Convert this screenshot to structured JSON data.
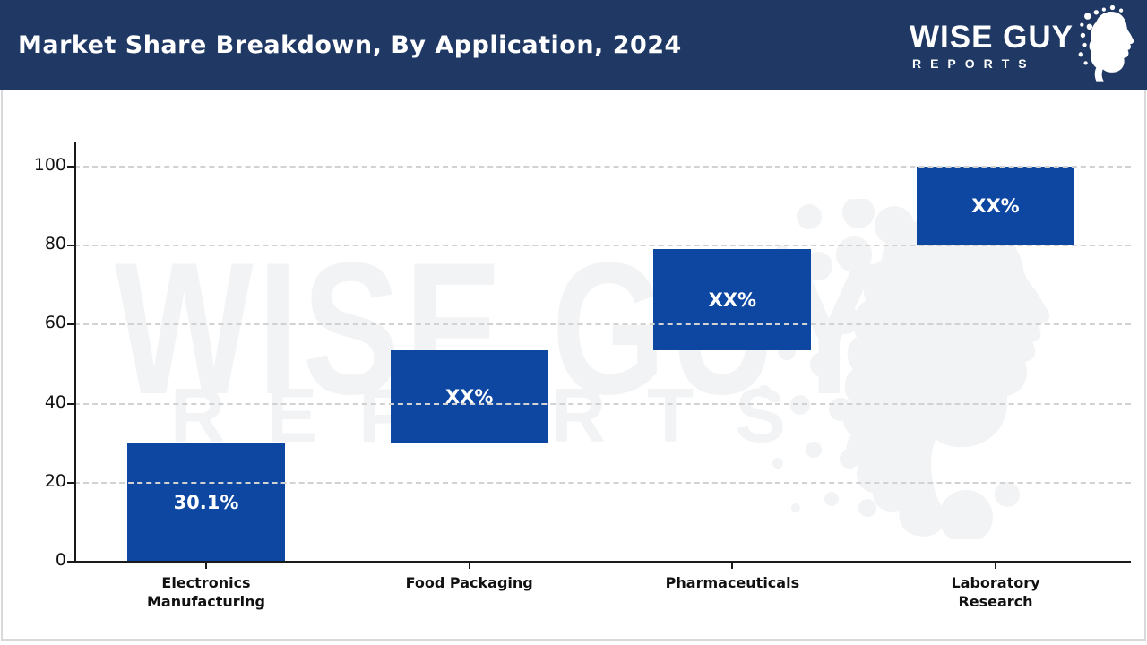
{
  "header": {
    "title": "Market Share Breakdown, By Application, 2024"
  },
  "logo": {
    "line1": "WISE GUY",
    "line2": "REPORTS"
  },
  "watermark": {
    "line1": "WISE GUY",
    "line2": "REPORTS"
  },
  "colors": {
    "header_bg": "#1f3864",
    "bar": "#0d47a1",
    "bar_label": "#ffffff",
    "gridline": "#d2d2d2",
    "axis": "#1a1a1a",
    "watermark": "#f2f3f5",
    "card_border": "#d9d9d9"
  },
  "chart_data": {
    "type": "bar",
    "subtype": "waterfall-floating-bars",
    "title": "Market Share Breakdown, By Application, 2024",
    "categories": [
      "Electronics Manufacturing",
      "Food Packaging",
      "Pharmaceuticals",
      "Laboratory Research"
    ],
    "categories_lines": [
      [
        "Electronics",
        "Manufacturing"
      ],
      [
        "Food Packaging"
      ],
      [
        "Pharmaceuticals"
      ],
      [
        "Laboratory",
        "Research"
      ]
    ],
    "segments": [
      {
        "category": "Electronics Manufacturing",
        "start": 0,
        "end": 30.1,
        "label": "30.1%"
      },
      {
        "category": "Food Packaging",
        "start": 30.1,
        "end": 53.5,
        "label": "XX%"
      },
      {
        "category": "Pharmaceuticals",
        "start": 53.5,
        "end": 79.1,
        "label": "XX%"
      },
      {
        "category": "Laboratory Research",
        "start": 80,
        "end": 100,
        "label": "XX%"
      }
    ],
    "xlabel": "",
    "ylabel": "",
    "yticks": [
      0,
      20,
      40,
      60,
      80,
      100
    ],
    "ylim": [
      0,
      100
    ],
    "grid": "horizontal-dashed-over-bars",
    "legend": "none"
  }
}
